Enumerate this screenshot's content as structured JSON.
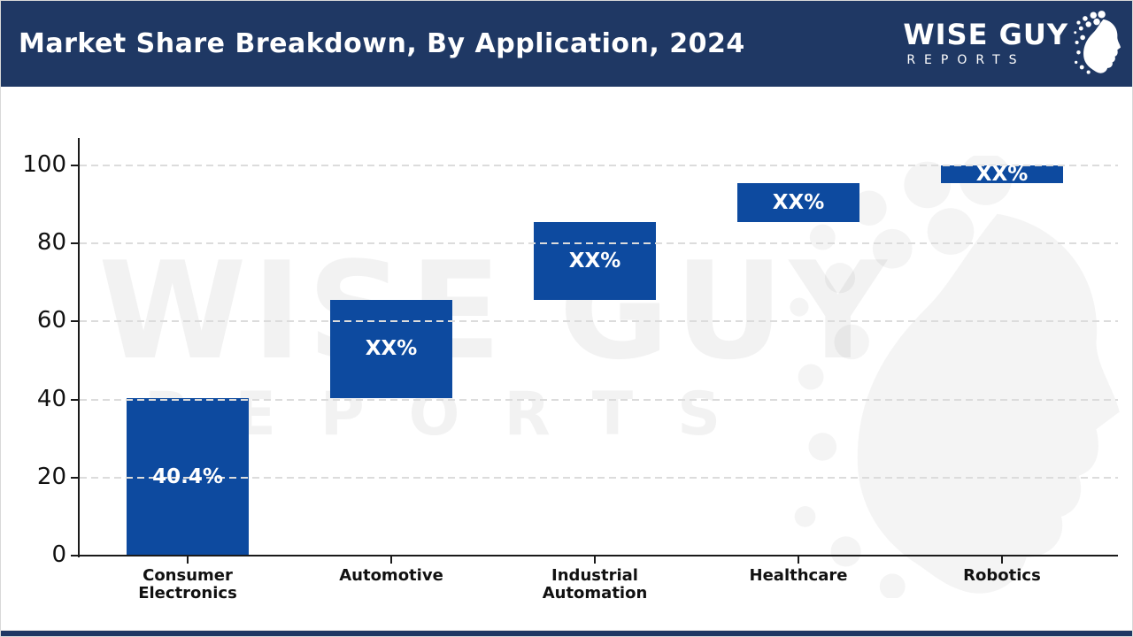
{
  "header": {
    "title": "Market Share Breakdown, By Application, 2024",
    "logo": {
      "line1": "WISE GUY",
      "line2": "REPORTS"
    }
  },
  "watermark": {
    "line1": "WISE GUY",
    "line2": "REPORTS"
  },
  "colors": {
    "header_bg": "#1f3864",
    "footer_bg": "#1f3864",
    "bar": "#0d4a9f",
    "grid": "#dcdcdc",
    "axis": "#1a1a1a",
    "tick_text": "#111111",
    "bar_label_text": "#ffffff"
  },
  "chart_data": {
    "type": "bar",
    "variant": "waterfall",
    "title": "Market Share Breakdown, By Application, 2024",
    "categories": [
      "Consumer Electronics",
      "Automotive",
      "Industrial Automation",
      "Healthcare",
      "Robotics"
    ],
    "category_label_lines": [
      [
        "Consumer",
        "Electronics"
      ],
      [
        "Automotive"
      ],
      [
        "Industrial",
        "Automation"
      ],
      [
        "Healthcare"
      ],
      [
        "Robotics"
      ]
    ],
    "segments": [
      {
        "category": "Consumer Electronics",
        "start": 0,
        "end": 40.4,
        "label": "40.4%"
      },
      {
        "category": "Automotive",
        "start": 40.4,
        "end": 65.5,
        "label": "XX%"
      },
      {
        "category": "Industrial Automation",
        "start": 65.5,
        "end": 85.5,
        "label": "XX%"
      },
      {
        "category": "Healthcare",
        "start": 85.5,
        "end": 95.5,
        "label": "XX%"
      },
      {
        "category": "Robotics",
        "start": 95.5,
        "end": 100,
        "label": "XX%"
      }
    ],
    "xlabel": "",
    "ylabel": "",
    "yticks": [
      0,
      20,
      40,
      60,
      80,
      100
    ],
    "ylim": [
      0,
      107
    ],
    "grid": "horizontal-dashed",
    "legend": "none",
    "bar_color": "#0d4a9f",
    "bar_label_color": "#ffffff"
  }
}
